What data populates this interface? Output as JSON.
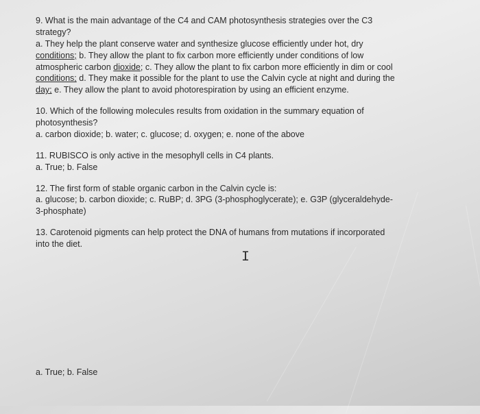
{
  "q9": {
    "prompt_l1": "9. What is the main advantage of the C4 and CAM photosynthesis strategies over the C3",
    "prompt_l2": "strategy?",
    "opt_a1": "a. They help the plant conserve water and synthesize glucose efficiently under hot, dry",
    "opt_a2_u": "conditions;",
    "opt_b1": " b. They allow the plant to fix carbon more efficiently under conditions of low",
    "opt_b2a": "atmospheric carbon ",
    "opt_b2_u": "dioxide;",
    "opt_c1": " c. They allow the plant to fix carbon more efficiently in dim or cool",
    "opt_c2_u": "conditions;",
    "opt_d1": " d. They make it possible for the plant to use the Calvin cycle at night and during the",
    "opt_d2_u": "day;",
    "opt_e": " e. They allow the plant to avoid photorespiration by using an efficient enzyme."
  },
  "q10": {
    "prompt_l1": "10. Which of the following molecules results from oxidation in the summary equation of",
    "prompt_l2": "photosynthesis?",
    "options": "a. carbon dioxide; b. water; c. glucose; d. oxygen; e. none of the above"
  },
  "q11": {
    "prompt": "11. RUBISCO is only active in the mesophyll cells in C4 plants.",
    "options": "a. True; b. False"
  },
  "q12": {
    "prompt": "12. The first form of stable organic carbon in the Calvin cycle is:",
    "options_l1": "a. glucose; b. carbon dioxide; c. RuBP; d. 3PG (3-phosphoglycerate); e. G3P (glyceraldehyde-",
    "options_l2": "3-phosphate)"
  },
  "q13": {
    "prompt_l1": "13. Carotenoid pigments can help protect the DNA of humans from mutations if incorporated",
    "prompt_l2": "into the diet.",
    "options": "a. True; b. False"
  },
  "cursor": "I",
  "colors": {
    "text": "#2a2a2a",
    "bg_light": "#ededed",
    "bg_dark": "#c8c8c8"
  }
}
